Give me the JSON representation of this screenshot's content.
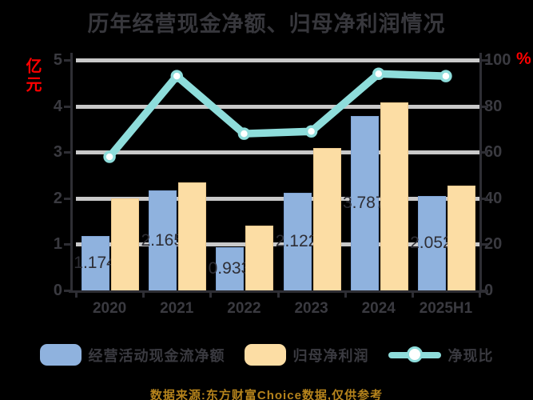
{
  "title": "历年经营现金净额、归母净利润情况",
  "footer_source": "数据来源:东方财富Choice数据,仅供参考",
  "left_axis": {
    "unit": "亿元",
    "ticks": [
      0,
      1,
      2,
      3,
      4,
      5
    ],
    "range": [
      0,
      5
    ]
  },
  "right_axis": {
    "unit": "%",
    "ticks": [
      0,
      20,
      40,
      60,
      80,
      100
    ],
    "range": [
      0,
      100
    ]
  },
  "legend": [
    {
      "label": "经营活动现金流净额",
      "type": "bar",
      "color": "#8fb2de"
    },
    {
      "label": "归母净利润",
      "type": "bar",
      "color": "#fcdda4"
    },
    {
      "label": "净现比",
      "type": "line",
      "color": "#8edddb"
    }
  ],
  "colors": {
    "background": "#000000",
    "gridline": "#c9c9c9",
    "axis": "#2e2e34",
    "tick_text": "#3a3a40",
    "bar_label": "#2e2e35",
    "unit_red": "#ff0000",
    "footer_orange": "#b5831c",
    "marker_fill": "#ffffff"
  },
  "chart_data": {
    "type": "bar",
    "subtype": "combo-bar-line",
    "categories": [
      "2020",
      "2021",
      "2022",
      "2023",
      "2024",
      "2025H1"
    ],
    "series": [
      {
        "name": "经营活动现金流净额",
        "type": "bar",
        "axis": "left",
        "color": "#8fb2de",
        "border_color": "#7fa3d4",
        "values": [
          1.174,
          2.165,
          0.933,
          2.122,
          3.787,
          2.052
        ],
        "data_labels": [
          "1.174",
          "2.165",
          "0.933",
          "2.122",
          "3.787",
          "2.052"
        ]
      },
      {
        "name": "归母净利润",
        "type": "bar",
        "axis": "left",
        "color": "#fcdda4",
        "border_color": "#ecc98e",
        "values": [
          2.0,
          2.35,
          1.4,
          3.09,
          4.08,
          2.27
        ],
        "data_labels": []
      },
      {
        "name": "净现比",
        "type": "line",
        "axis": "right",
        "color": "#8edddb",
        "values": [
          58,
          93,
          68,
          69,
          94,
          93
        ]
      }
    ],
    "title": "历年经营现金净额、归母净利润情况",
    "xlabel": "",
    "ylabel_left": "亿元",
    "ylabel_right": "%",
    "ylim_left": [
      0,
      5
    ],
    "ylim_right": [
      0,
      100
    ],
    "grid": true,
    "legend_position": "bottom"
  }
}
